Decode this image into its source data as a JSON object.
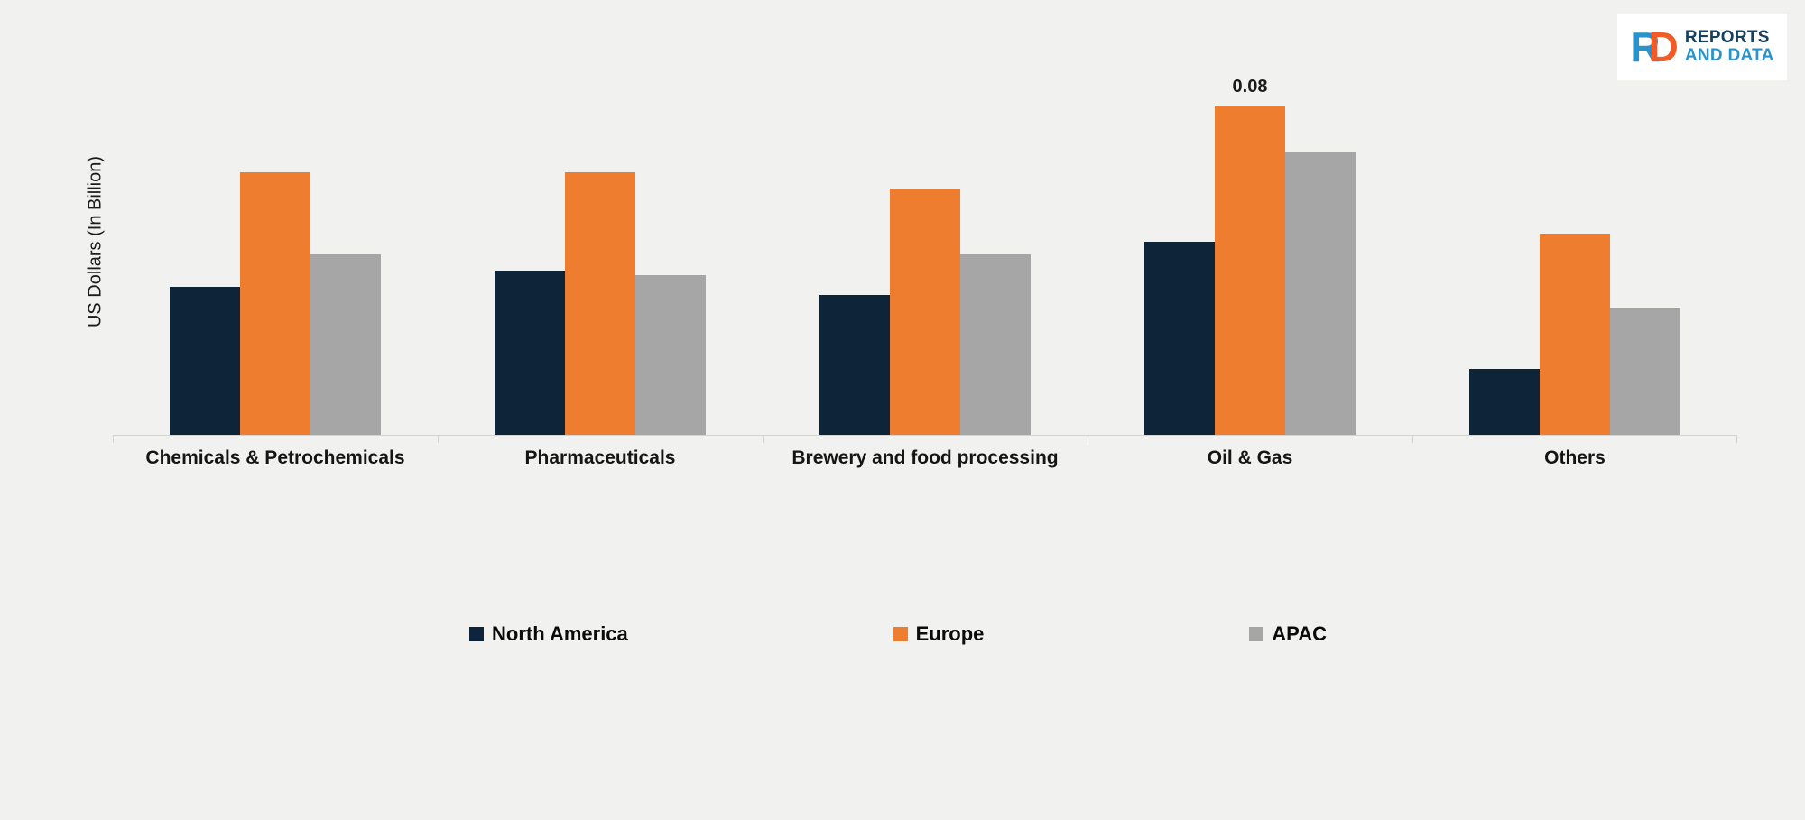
{
  "page": {
    "background": "#f1f1ef"
  },
  "logo": {
    "monogram_r": "R",
    "monogram_d": "D",
    "line1": "REPORTS",
    "line2": "AND DATA",
    "colors": {
      "r": "#2a93c9",
      "d": "#f05b28",
      "line1": "#16405f",
      "line2": "#2a93c9"
    }
  },
  "chart_data": {
    "type": "bar",
    "title": "",
    "xlabel": "",
    "ylabel": "US Dollars  (In Billion)",
    "ylim": [
      0,
      0.1
    ],
    "grid": false,
    "legend_position": "bottom",
    "axis_color": "#d4d4d2",
    "categories": [
      "Chemicals & Petrochemicals",
      "Pharmaceuticals",
      "Brewery and food processing",
      "Oil & Gas",
      "Others"
    ],
    "series": [
      {
        "name": "North America",
        "color": "#0e2439",
        "values": [
          0.036,
          0.04,
          0.034,
          0.047,
          0.016
        ],
        "labels": [
          null,
          null,
          null,
          null,
          null
        ]
      },
      {
        "name": "Europe",
        "color": "#ee7d30",
        "values": [
          0.064,
          0.064,
          0.06,
          0.08,
          0.049
        ],
        "labels": [
          null,
          null,
          null,
          "0.08",
          null
        ]
      },
      {
        "name": "APAC",
        "color": "#a6a6a6",
        "values": [
          0.044,
          0.039,
          0.044,
          0.069,
          0.031
        ],
        "labels": [
          null,
          null,
          null,
          null,
          null
        ]
      }
    ]
  }
}
